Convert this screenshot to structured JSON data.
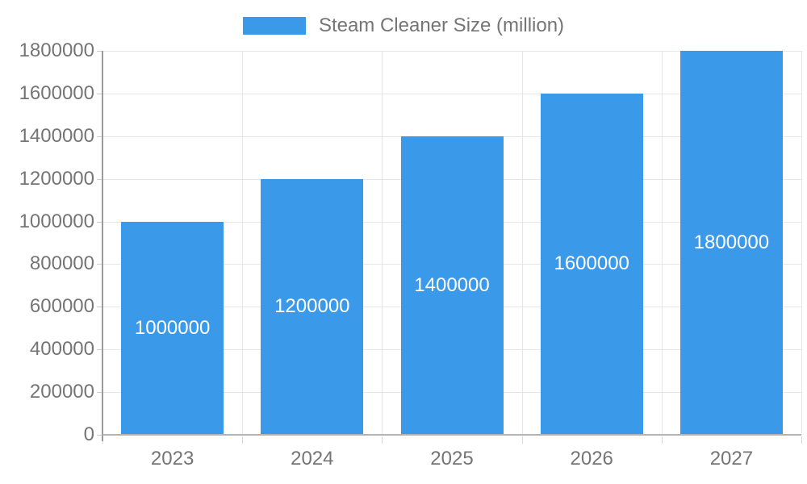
{
  "chart_data": {
    "type": "bar",
    "title": "Steam Cleaner Size (million)",
    "legend": [
      "Steam Cleaner Size (million)"
    ],
    "legend_position": "top-center",
    "categories": [
      "2023",
      "2024",
      "2025",
      "2026",
      "2027"
    ],
    "values": [
      1000000,
      1200000,
      1400000,
      1600000,
      1800000
    ],
    "value_labels": [
      "1000000",
      "1200000",
      "1400000",
      "1600000",
      "1800000"
    ],
    "value_label_position": "inside-center",
    "xlabel": "",
    "ylabel": "",
    "ylim": [
      0,
      1800000
    ],
    "ytick_step": 200000,
    "ytick_labels": [
      "0",
      "200000",
      "400000",
      "600000",
      "800000",
      "1000000",
      "1200000",
      "1400000",
      "1600000",
      "1800000"
    ],
    "grid": true
  },
  "colors": {
    "bar": "#3b99ea",
    "bar_value_text": "#ffffff",
    "axis_text": "#757575",
    "gridline": "#e6e6e6",
    "y_axis_line": "#999999",
    "x_axis_line": "#b3b3b3",
    "background": "#ffffff"
  }
}
